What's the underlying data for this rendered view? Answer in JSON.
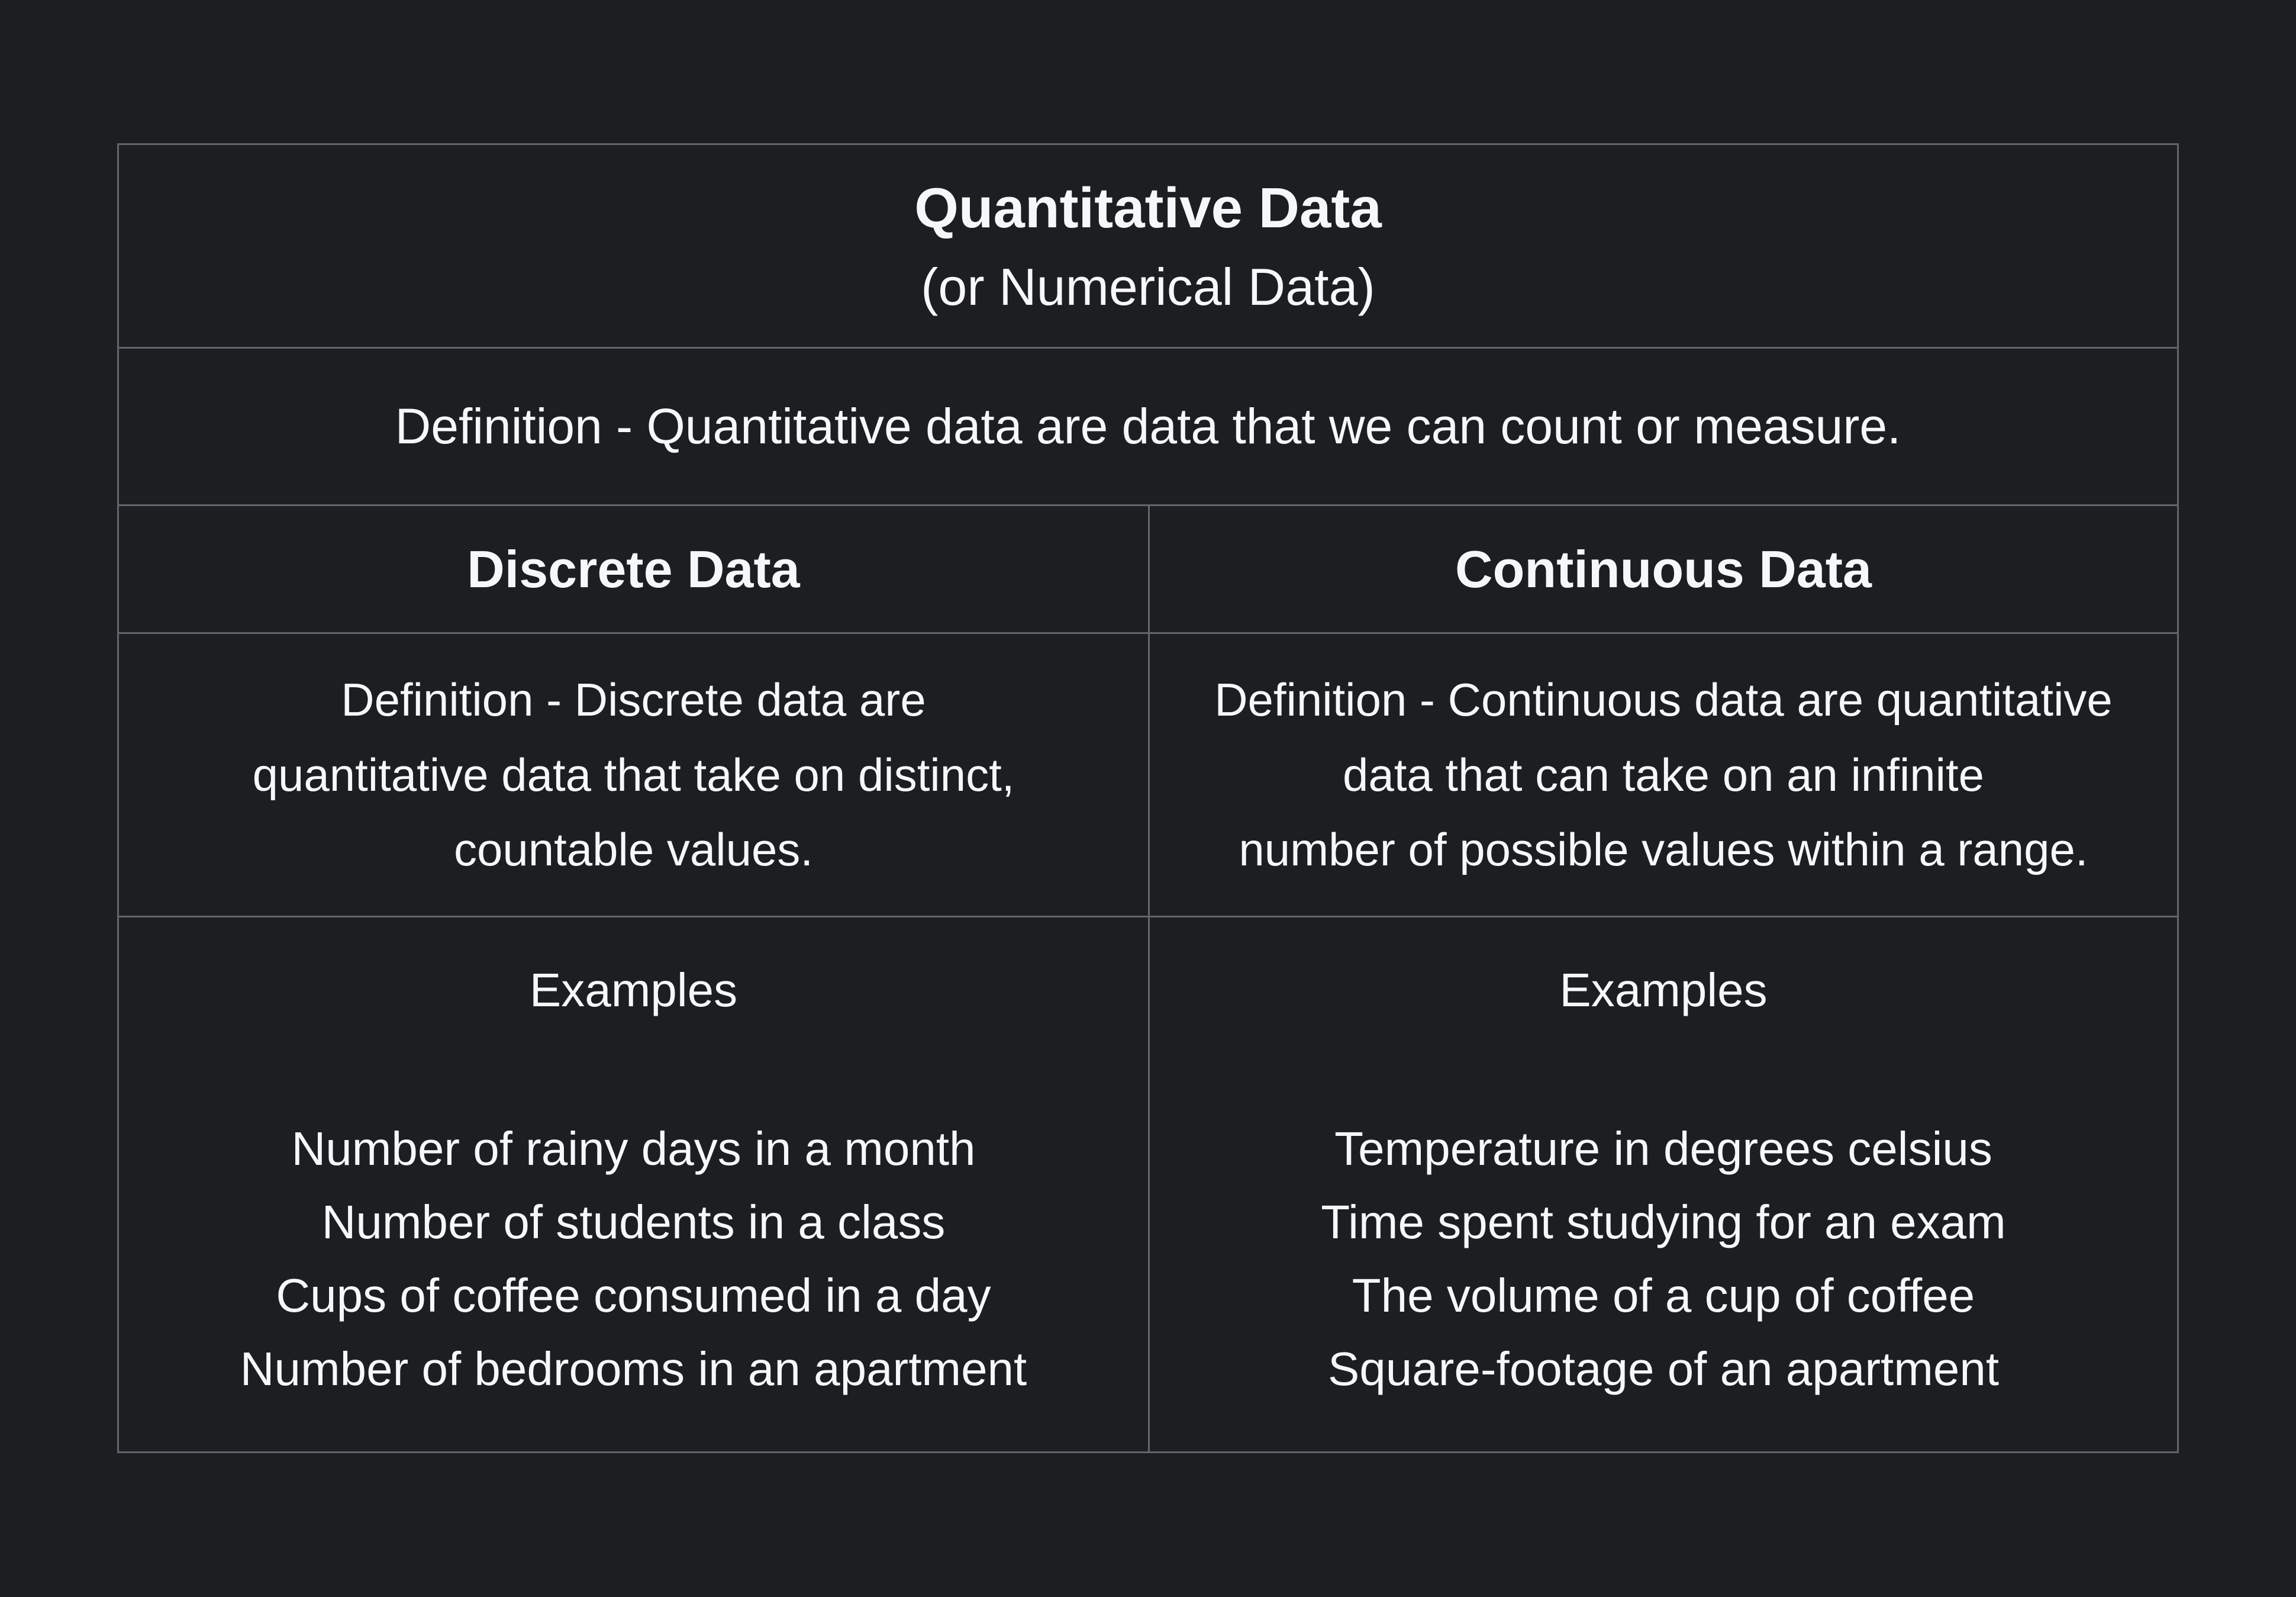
{
  "colors": {
    "background": "#1d1e22",
    "border": "#63656a",
    "text": "#f6f7f8"
  },
  "table": {
    "title": "Quantitative Data",
    "subtitle": "(or Numerical Data)",
    "definition": "Definition - Quantitative data are data that we can count or measure.",
    "columns": [
      {
        "header": "Discrete Data",
        "definition_lines": [
          "Definition - Discrete data are",
          "quantitative data that take on distinct,",
          "countable values."
        ],
        "examples_label": "Examples",
        "examples": [
          "Number of rainy days in a month",
          "Number of students in a class",
          "Cups of coffee consumed in a day",
          "Number of bedrooms in an apartment"
        ]
      },
      {
        "header": "Continuous Data",
        "definition_lines": [
          "Definition - Continuous data are quantitative",
          "data that can take on an infinite",
          "number of possible values within a range."
        ],
        "examples_label": "Examples",
        "examples": [
          "Temperature in degrees celsius",
          "Time spent studying for an exam",
          "The volume of a cup of coffee",
          "Square-footage of an apartment"
        ]
      }
    ]
  }
}
